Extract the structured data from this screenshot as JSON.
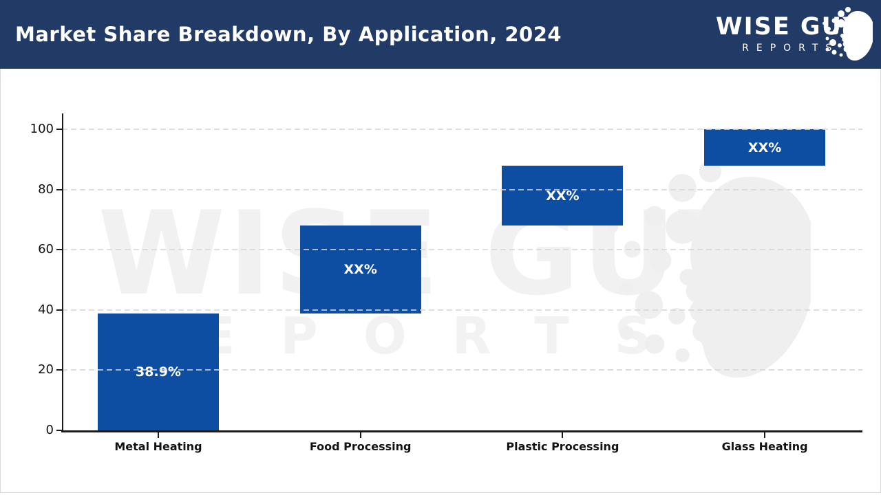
{
  "header": {
    "title": "Market Share Breakdown, By Application, 2024",
    "background_color": "#213a66",
    "logo": {
      "primary_text": "WISE GUY",
      "secondary_text": "REPORTS",
      "face_icon": "dotted-face-profile"
    }
  },
  "watermark": {
    "primary_text": "WISE GUY",
    "secondary_text": "REPORTS",
    "face_icon": "dotted-face-profile",
    "color": "#f1f1f1"
  },
  "chart_data": {
    "type": "bar",
    "subtype": "floating-waterfall",
    "title": "Market Share Breakdown, By Application, 2024",
    "categories": [
      "Metal Heating",
      "Food Processing",
      "Plastic Processing",
      "Glass Heating"
    ],
    "segments": [
      {
        "category": "Metal Heating",
        "start": 0,
        "end": 38.9,
        "label": "38.9%"
      },
      {
        "category": "Food Processing",
        "start": 38.9,
        "end": 68.1,
        "label": "XX%"
      },
      {
        "category": "Plastic Processing",
        "start": 68.1,
        "end": 87.8,
        "label": "XX%"
      },
      {
        "category": "Glass Heating",
        "start": 87.8,
        "end": 100,
        "label": "XX%"
      }
    ],
    "ylim": [
      0,
      100
    ],
    "yticks": [
      "0",
      "20",
      "40",
      "60",
      "80",
      "100"
    ],
    "xlabel": "",
    "ylabel": "",
    "grid": "horizontal-dashed",
    "legend": "none",
    "bar_color": "#0d4da2",
    "bar_label_color": "#ffffff",
    "axis_color": "#1a1a1a"
  }
}
